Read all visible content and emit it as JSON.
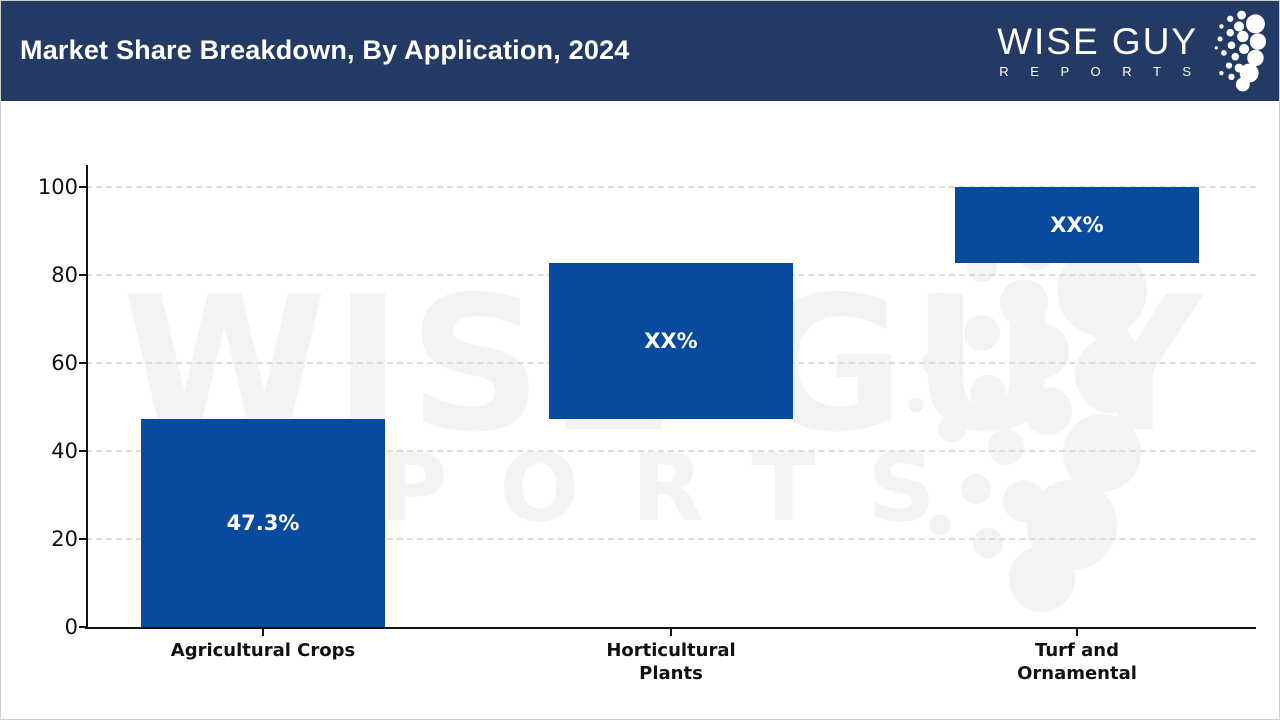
{
  "header": {
    "title": "Market Share Breakdown, By Application, 2024",
    "logo": {
      "line1": "WISE GUY",
      "line2": "REPORTS"
    }
  },
  "watermark": {
    "line1": "WISE GUY",
    "line2": "REPORTS"
  },
  "chart_data": {
    "type": "bar",
    "subtype": "floating-segment-breakdown",
    "title": "Market Share Breakdown, By Application, 2024",
    "categories": [
      "Agricultural Crops",
      "Horticultural Plants",
      "Turf and Ornamental"
    ],
    "category_display_labels": [
      "Agricultural Crops",
      "Horticultural\nPlants",
      "Turf and\nOrnamental"
    ],
    "segments": [
      {
        "category": "Agricultural Crops",
        "start": 0,
        "end": 47.3,
        "label": "47.3%"
      },
      {
        "category": "Horticultural Plants",
        "start": 47.3,
        "end": 82.7,
        "label": "XX%"
      },
      {
        "category": "Turf and Ornamental",
        "start": 82.7,
        "end": 100,
        "label": "XX%"
      }
    ],
    "xlabel": "",
    "ylabel": "",
    "ylim": [
      0,
      100
    ],
    "yticks": [
      0,
      20,
      40,
      60,
      80,
      100
    ],
    "grid": "horizontal-dashed",
    "legend": "none",
    "bar_color": "#084a9d",
    "bar_label_color": "#ffffff"
  },
  "colors": {
    "header_bg": "#233a64",
    "bar": "#084a9d",
    "axis": "#141414",
    "grid": "#dcdcdc",
    "watermark": "#f3f3f3",
    "frame_border": "#cfcfcf"
  }
}
